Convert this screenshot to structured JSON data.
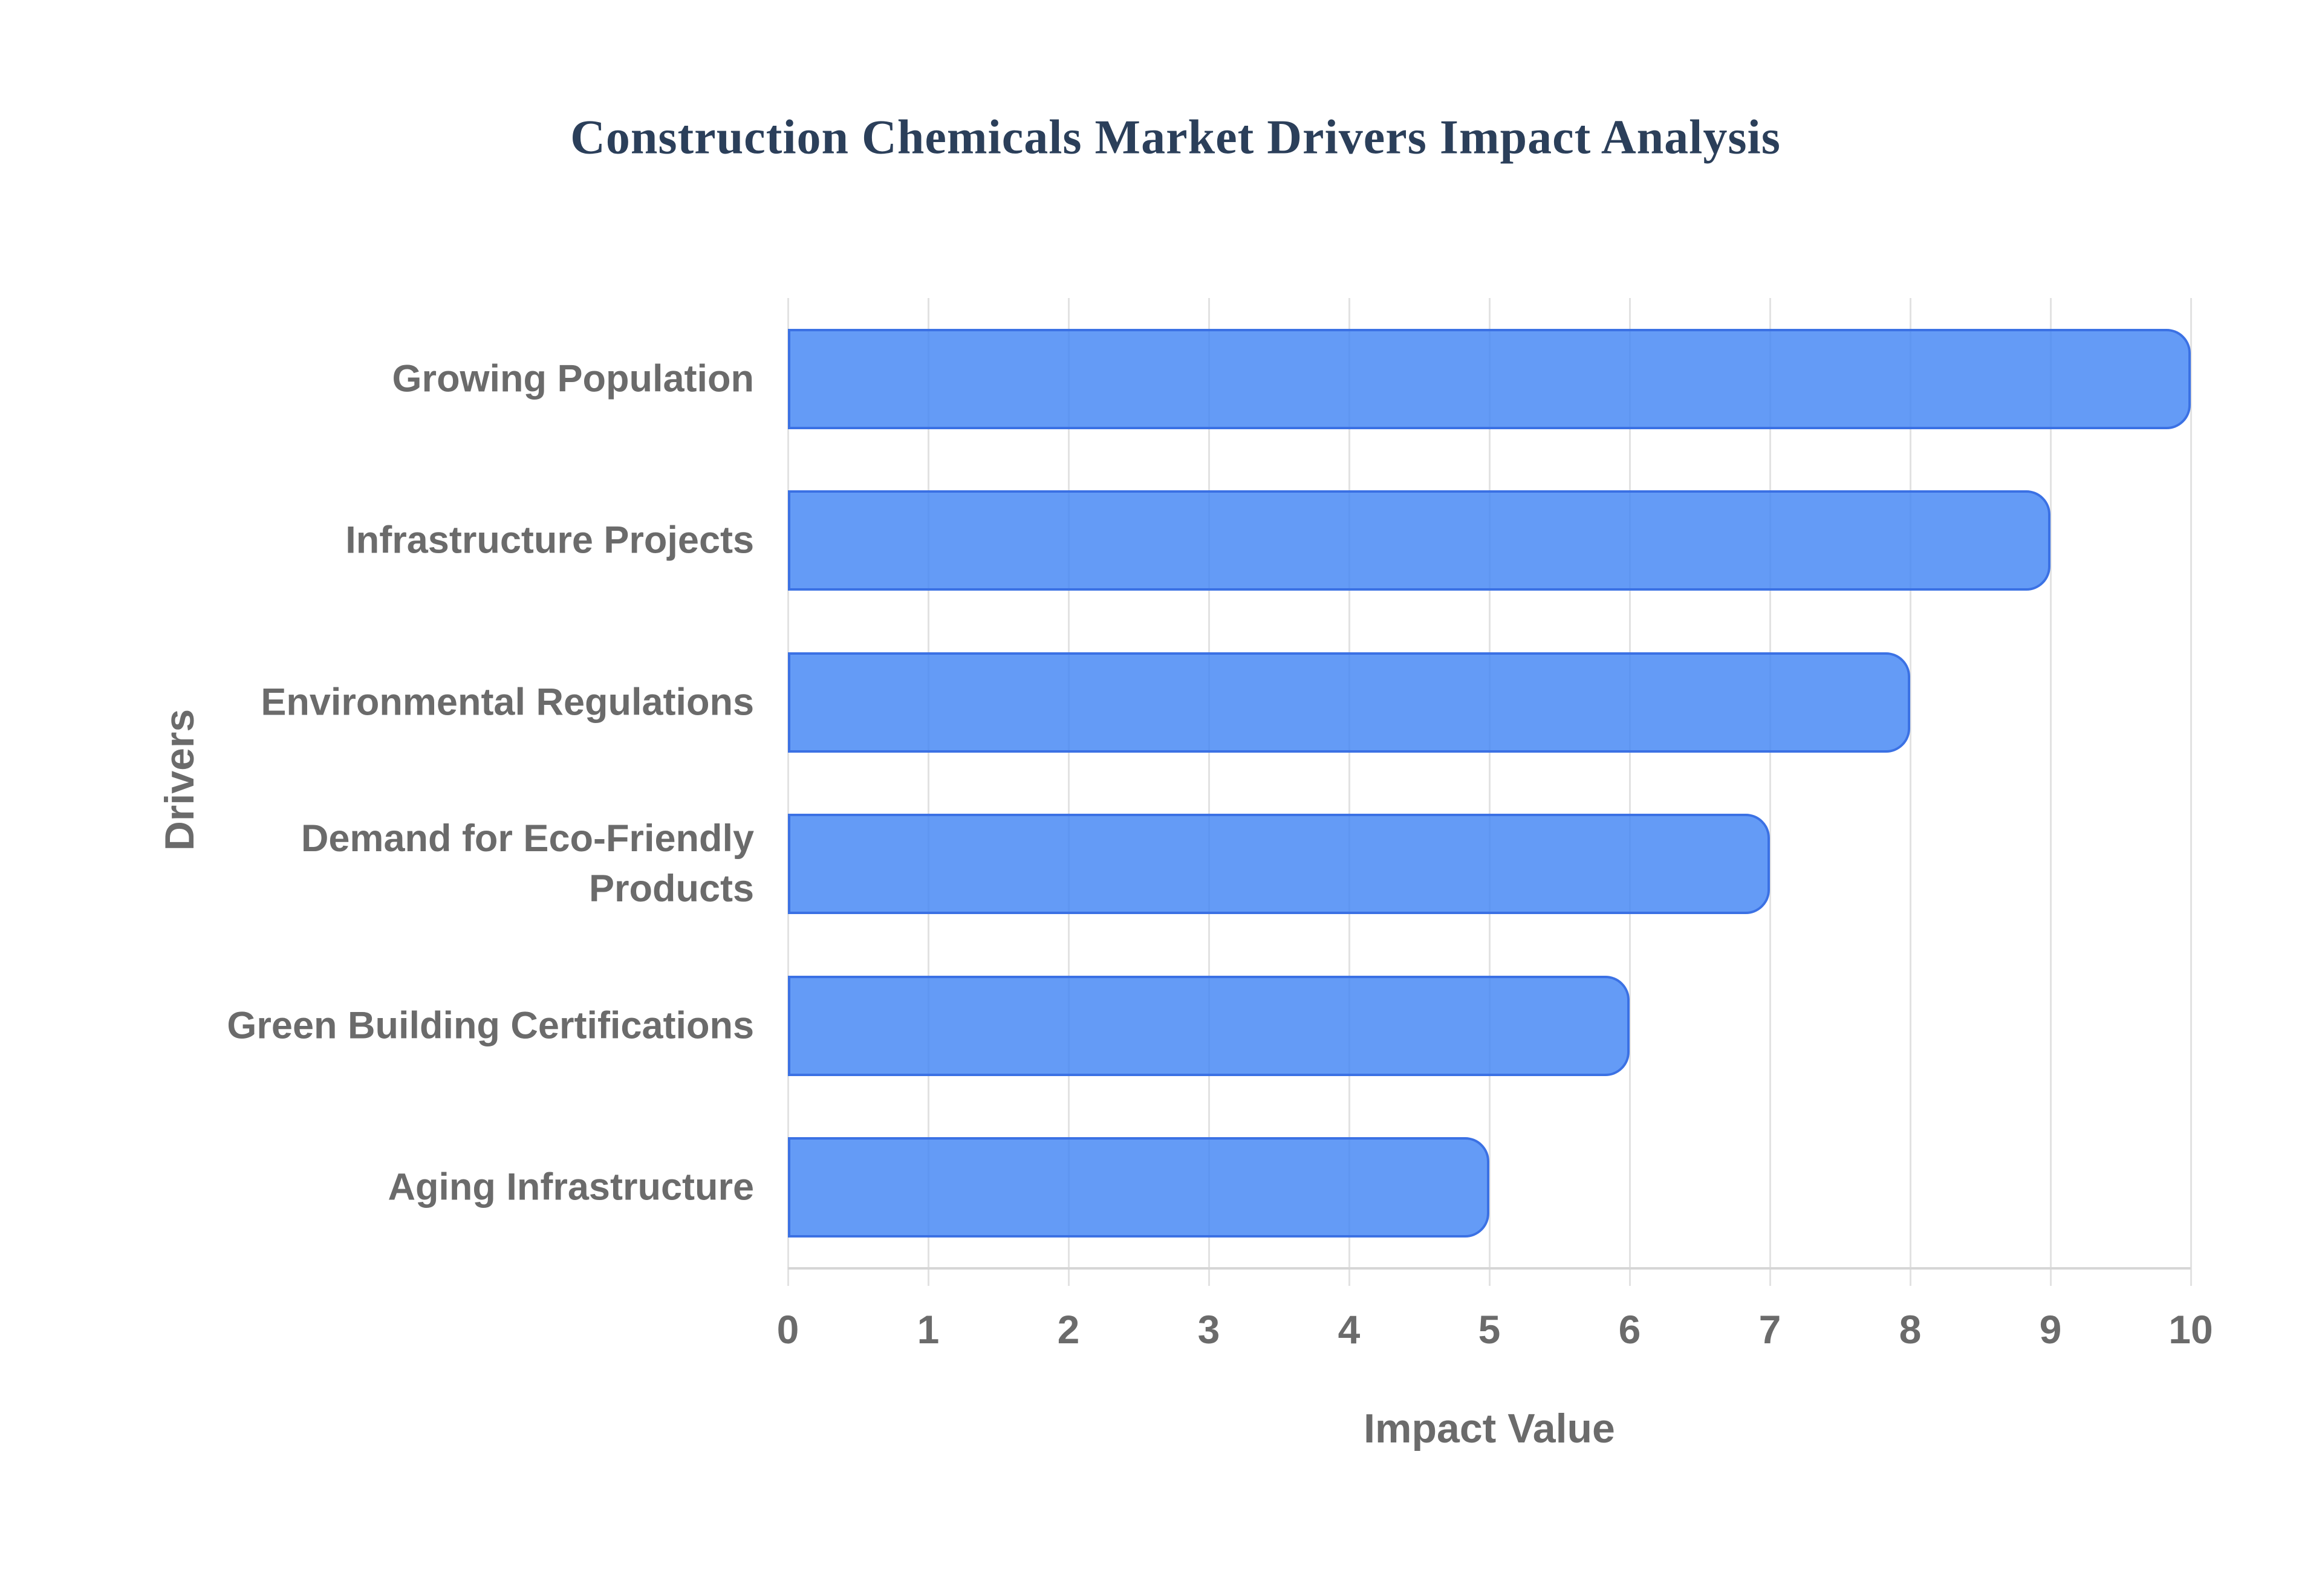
{
  "title": "Construction Chemicals Market Drivers Impact Analysis",
  "colors": {
    "title_text": "#2b3f5a",
    "axis_text": "#6b6b6b",
    "bar_fill": "rgba(66,133,244,0.82)",
    "bar_border": "#3b71e4",
    "gridline": "#e2e2e2",
    "axis_line": "#d6d6d6",
    "background": "#ffffff"
  },
  "chart_data": {
    "type": "bar",
    "orientation": "horizontal",
    "title": "Construction Chemicals Market Drivers Impact Analysis",
    "xlabel": "Impact Value",
    "ylabel": "Drivers",
    "categories": [
      "Growing Population",
      "Infrastructure Projects",
      "Environmental Regulations",
      "Demand for Eco-Friendly\nProducts",
      "Green Building Certifications",
      "Aging Infrastructure"
    ],
    "values": [
      10,
      9,
      8,
      7,
      6,
      5
    ],
    "xlim": [
      0,
      10
    ],
    "xticks": [
      0,
      1,
      2,
      3,
      4,
      5,
      6,
      7,
      8,
      9,
      10
    ],
    "grid": "vertical-only",
    "legend": "none"
  }
}
